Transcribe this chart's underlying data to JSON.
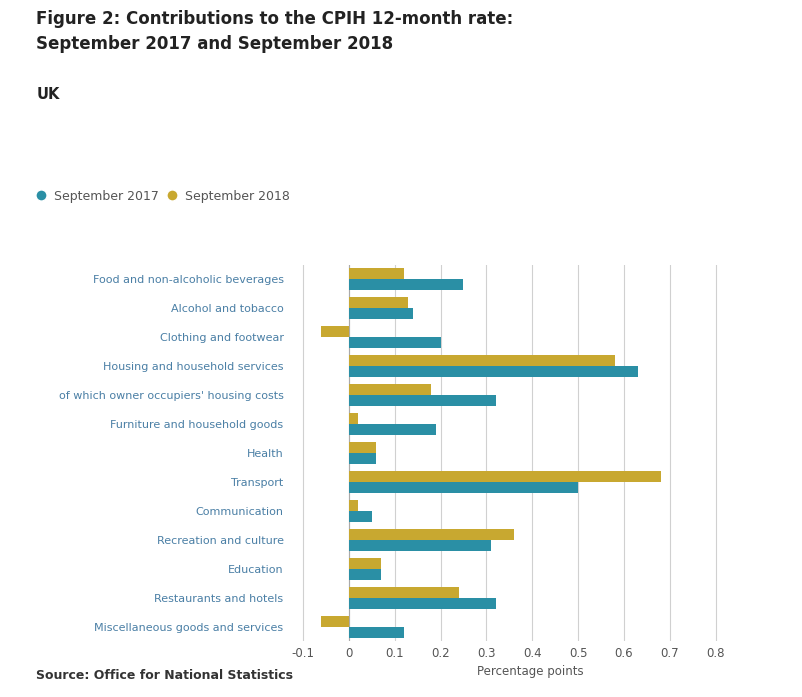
{
  "title": "Figure 2: Contributions to the CPIH 12-month rate:\nSeptember 2017 and September 2018",
  "subtitle": "UK",
  "source": "Source: Office for National Statistics",
  "legend": [
    "September 2017",
    "September 2018"
  ],
  "categories": [
    "Food and non-alcoholic beverages",
    "Alcohol and tobacco",
    "Clothing and footwear",
    "Housing and household services",
    "of which owner occupiers' housing costs",
    "Furniture and household goods",
    "Health",
    "Transport",
    "Communication",
    "Recreation and culture",
    "Education",
    "Restaurants and hotels",
    "Miscellaneous goods and services"
  ],
  "sep2017": [
    0.25,
    0.14,
    0.2,
    0.63,
    0.32,
    0.19,
    0.06,
    0.5,
    0.05,
    0.31,
    0.07,
    0.32,
    0.12
  ],
  "sep2018": [
    0.12,
    0.13,
    -0.06,
    0.58,
    0.18,
    0.02,
    0.06,
    0.68,
    0.02,
    0.36,
    0.07,
    0.24,
    -0.06
  ],
  "color_2017": "#2a8fa5",
  "color_2018": "#c8a830",
  "xlabel": "Percentage points",
  "xlim": [
    -0.13,
    0.92
  ],
  "xticks": [
    -0.1,
    0.0,
    0.1,
    0.2,
    0.3,
    0.4,
    0.5,
    0.6,
    0.7,
    0.8
  ],
  "bar_height": 0.38,
  "figsize": [
    8.03,
    6.97
  ],
  "dpi": 100,
  "background_color": "#ffffff",
  "label_color": "#4a7fa5",
  "grid_color": "#d0d0d0",
  "tick_color": "#555555"
}
